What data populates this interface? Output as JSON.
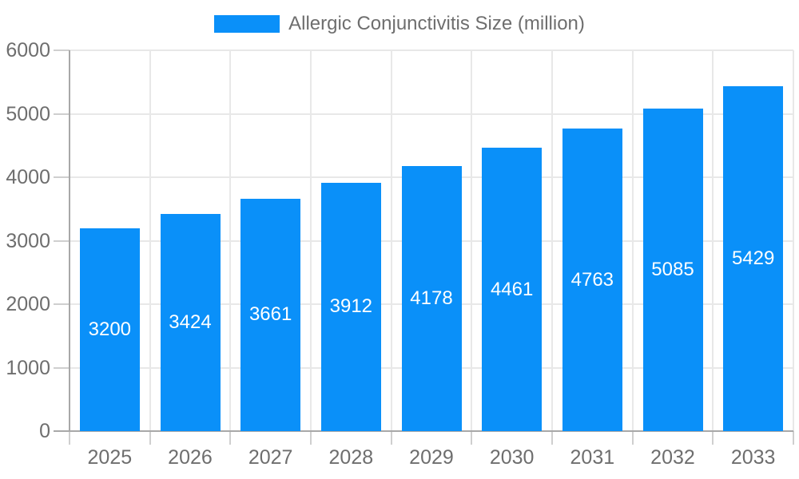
{
  "legend": {
    "label": "Allergic Conjunctivitis Size (million)"
  },
  "colors": {
    "bar": "#0a90f9",
    "grid": "#e8e8e8",
    "axis": "#a8a8a8",
    "tick": "#cfcfcf",
    "axis_text": "#6e6e6e",
    "value_label": "#ffffff",
    "background": "#ffffff"
  },
  "chart_data": {
    "type": "bar",
    "title": "",
    "categories": [
      "2025",
      "2026",
      "2027",
      "2028",
      "2029",
      "2030",
      "2031",
      "2032",
      "2033"
    ],
    "series": [
      {
        "name": "Allergic Conjunctivitis Size (million)",
        "values": [
          3200,
          3424,
          3661,
          3912,
          4178,
          4461,
          4763,
          5085,
          5429
        ]
      }
    ],
    "value_labels": [
      "3200",
      "3424",
      "3661",
      "3912",
      "4178",
      "4461",
      "4763",
      "5085",
      "5429"
    ],
    "value_label_position": "inside-center",
    "xlabel": "",
    "ylabel": "",
    "ylim": [
      0,
      6000
    ],
    "yticks": [
      0,
      1000,
      2000,
      3000,
      4000,
      5000,
      6000
    ],
    "grid": true,
    "legend_position": "top"
  }
}
